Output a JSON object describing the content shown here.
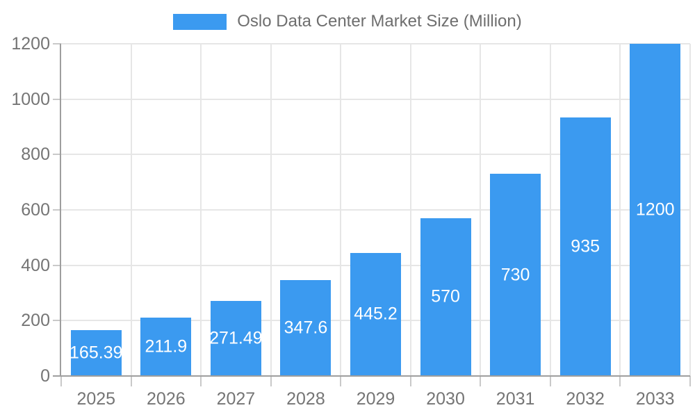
{
  "legend": {
    "label": "Oslo Data Center Market Size (Million)"
  },
  "chart_data": {
    "type": "bar",
    "title": "Oslo Data Center Market Size (Million)",
    "categories": [
      "2025",
      "2026",
      "2027",
      "2028",
      "2029",
      "2030",
      "2031",
      "2032",
      "2033"
    ],
    "values": [
      165.39,
      211.9,
      271.49,
      347.6,
      445.2,
      570,
      730,
      935,
      1200
    ],
    "value_labels": [
      "165.39",
      "211.9",
      "271.49",
      "347.6",
      "445.2",
      "570",
      "730",
      "935",
      "1200"
    ],
    "xlabel": "",
    "ylabel": "",
    "ylim": [
      0,
      1200
    ],
    "yticks": [
      0,
      200,
      400,
      600,
      800,
      1000,
      1200
    ],
    "grid": true,
    "legend_position": "top"
  },
  "colors": {
    "bar": "#3b9af0",
    "grid": "#e6e6e6",
    "axis": "#9e9e9e",
    "tick": "#c9c9c9",
    "axis_label": "#757575",
    "legend_text": "#6e6e6e",
    "value_label": "#ffffff",
    "background": "#ffffff"
  }
}
